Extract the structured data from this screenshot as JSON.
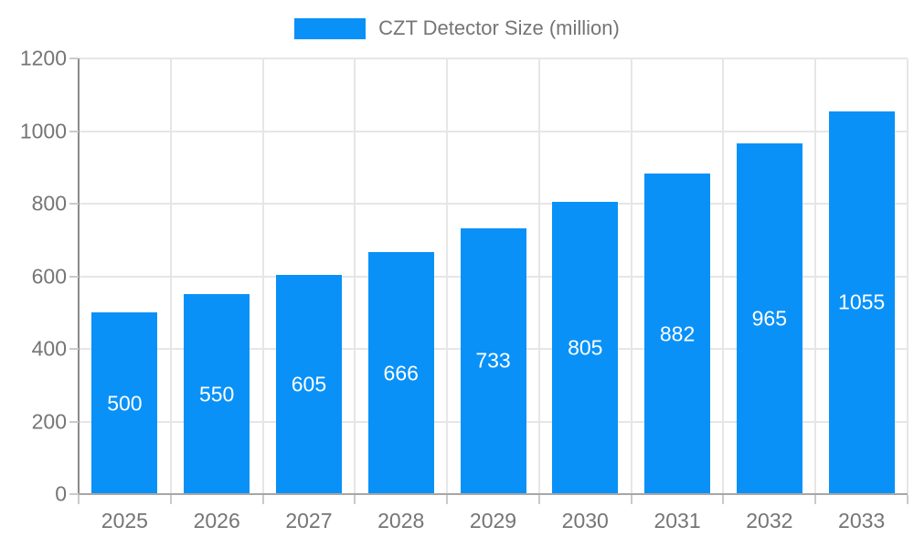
{
  "legend": {
    "label": "CZT Detector Size (million)"
  },
  "chart_data": {
    "type": "bar",
    "title": "CZT Detector Size (million)",
    "categories": [
      "2025",
      "2026",
      "2027",
      "2028",
      "2029",
      "2030",
      "2031",
      "2032",
      "2033"
    ],
    "values": [
      500,
      550,
      605,
      666,
      733,
      805,
      882,
      965,
      1055
    ],
    "xlabel": "",
    "ylabel": "",
    "ylim": [
      0,
      1200
    ],
    "yticks": [
      0,
      200,
      400,
      600,
      800,
      1000,
      1200
    ],
    "grid": true,
    "legend_position": "top",
    "bar_color": "#0991f8",
    "value_label_color": "#ffffff",
    "axis_text_color": "#757575",
    "gridline_color": "#e6e6e6",
    "axis_line_color": "#8a8a8a"
  }
}
